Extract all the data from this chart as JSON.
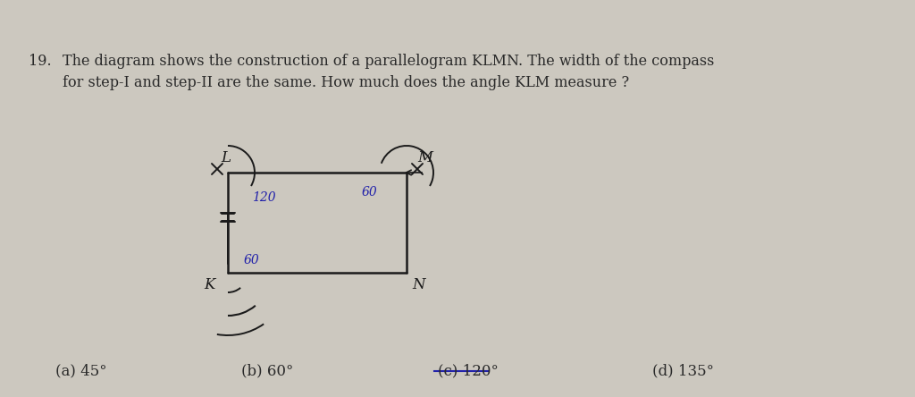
{
  "background_color": "#ccc8bf",
  "question_number": "19.",
  "question_text": "The diagram shows the construction of a parallelogram KLMN. The width of the compass",
  "question_text2": "for step-I and step-II are the same. How much does the angle KLM measure ?",
  "fig_width": 10.24,
  "fig_height": 4.44,
  "label_K": "K",
  "label_L": "L",
  "label_M": "M",
  "label_N": "N",
  "angle_K_text": "60",
  "angle_L_text": "120",
  "angle_M_text": "60",
  "choices": [
    "(a) 45",
    "(b) 60",
    "(c) 120",
    "(d) 135"
  ],
  "struck_choice_idx": 2,
  "text_color": "#2a2a2a",
  "diagram_color": "#1a1a1a",
  "font_size_q": 11.5,
  "font_size_choices": 12,
  "font_size_labels": 12,
  "font_size_angles": 10
}
